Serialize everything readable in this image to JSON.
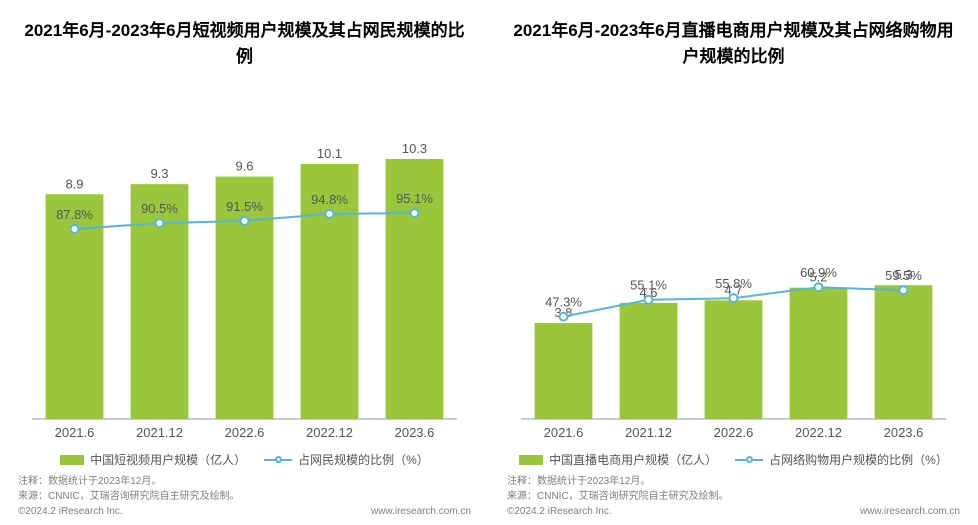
{
  "chart_left": {
    "type": "bar-line-combo",
    "title": "2021年6月-2023年6月短视频用户规模及其占网民规模的比例",
    "title_fontsize": 17,
    "categories": [
      "2021.6",
      "2021.12",
      "2022.6",
      "2022.12",
      "2023.6"
    ],
    "bar_series": {
      "name": "中国短视频用户规模（亿人）",
      "values": [
        8.9,
        9.3,
        9.6,
        10.1,
        10.3
      ],
      "color": "#9ac63b",
      "ylim": [
        0,
        12
      ],
      "bar_width_ratio": 0.68
    },
    "line_series": {
      "name": "占网民规模的比例（%）",
      "values": [
        87.8,
        90.5,
        91.5,
        94.8,
        95.1
      ],
      "labels": [
        "87.8%",
        "90.5%",
        "91.5%",
        "94.8%",
        "95.1%"
      ],
      "color": "#55b6d9",
      "ylim": [
        0,
        140
      ],
      "marker": "circle",
      "line_width": 2
    },
    "label_fontsize": 13,
    "axis_fontsize": 13,
    "background_color": "#ffffff",
    "note": "注释：数据统计于2023年12月。",
    "source": "来源：CNNIC，艾瑞咨询研究院自主研究及绘制。",
    "copyright": "©2024.2 iResearch Inc.",
    "watermark": "www.iresearch.com.cn"
  },
  "chart_right": {
    "type": "bar-line-combo",
    "title": "2021年6月-2023年6月直播电商用户规模及其占网络购物用户规模的比例",
    "title_fontsize": 17,
    "categories": [
      "2021.6",
      "2021.12",
      "2022.6",
      "2022.12",
      "2023.6"
    ],
    "bar_series": {
      "name": "中国直播电商用户规模（亿人）",
      "values": [
        3.8,
        4.6,
        4.7,
        5.2,
        5.3
      ],
      "color": "#9ac63b",
      "ylim": [
        0,
        12
      ],
      "bar_width_ratio": 0.68
    },
    "line_series": {
      "name": "占网络购物用户规模的比例（%）",
      "values": [
        47.3,
        55.1,
        55.8,
        60.9,
        59.5
      ],
      "labels": [
        "47.3%",
        "55.1%",
        "55.8%",
        "60.9%",
        "59.5%"
      ],
      "color": "#55b6d9",
      "ylim": [
        0,
        140
      ],
      "marker": "circle",
      "line_width": 2
    },
    "label_fontsize": 13,
    "axis_fontsize": 13,
    "background_color": "#ffffff",
    "note": "注释：数据统计于2023年12月。",
    "source": "来源：CNNIC，艾瑞咨询研究院自主研究及绘制。",
    "copyright": "©2024.2 iResearch Inc.",
    "watermark": "www.iresearch.com.cn"
  }
}
